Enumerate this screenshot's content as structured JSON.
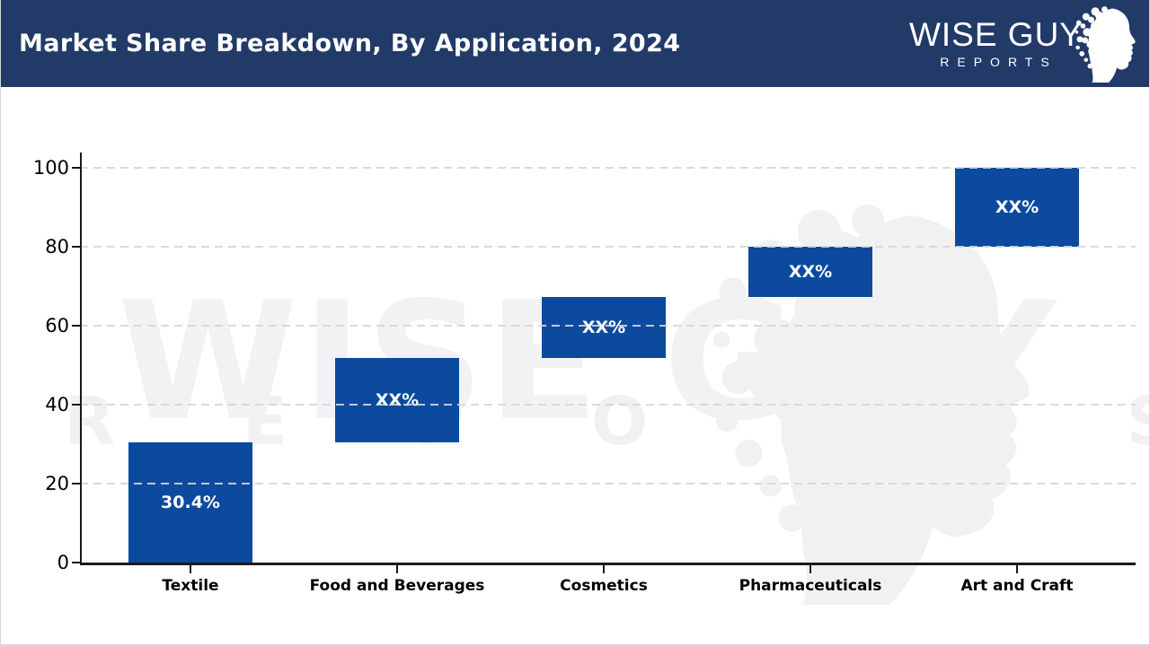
{
  "header": {
    "title": "Market Share Breakdown, By Application, 2024",
    "bg_color": "#223a68",
    "logo": {
      "line1": "WISE GUY",
      "line2": "REPORTS"
    }
  },
  "watermark": {
    "line1": "WISE GUY",
    "line2": "R E P O R T S"
  },
  "chart_data": {
    "type": "bar",
    "subtype": "waterfall",
    "title": "Market Share Breakdown, By Application, 2024",
    "categories": [
      "Textile",
      "Food and Beverages",
      "Cosmetics",
      "Pharmaceuticals",
      "Art and Craft"
    ],
    "segments": [
      {
        "category": "Textile",
        "start": 0,
        "end": 30.4,
        "label": "30.4%"
      },
      {
        "category": "Food and Beverages",
        "start": 30.4,
        "end": 51.8,
        "label": "XX%"
      },
      {
        "category": "Cosmetics",
        "start": 51.8,
        "end": 67.2,
        "label": "XX%"
      },
      {
        "category": "Pharmaceuticals",
        "start": 67.2,
        "end": 80,
        "label": "XX%"
      },
      {
        "category": "Art and Craft",
        "start": 80,
        "end": 100,
        "label": "XX%"
      }
    ],
    "ylim": [
      0,
      100
    ],
    "yticks": [
      0,
      20,
      40,
      60,
      80,
      100
    ],
    "xlabel": "",
    "ylabel": "",
    "grid": "dashed-horizontal",
    "legend": "none",
    "bar_color": "#0b4a9e",
    "bar_label_color": "#ffffff"
  }
}
